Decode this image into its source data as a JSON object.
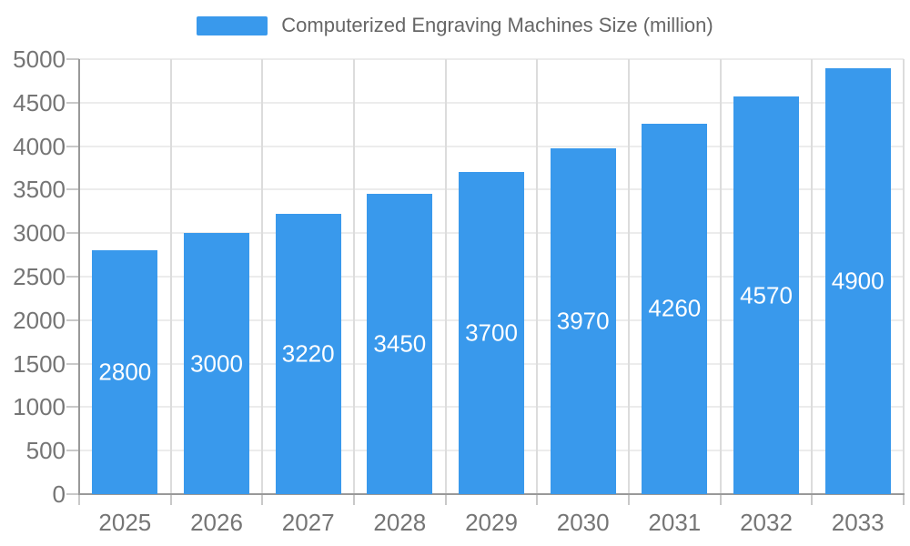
{
  "legend": {
    "label": "Computerized Engraving Machines Size (million)"
  },
  "colors": {
    "bar": "#3999EC",
    "title_text": "#666666",
    "axis_text": "#757575",
    "grid_h": "#ECECEC",
    "grid_v": "#DCDCDC",
    "axis_line": "#999999",
    "tick": "#C9C9C9",
    "value_label": "#FFFFFF",
    "background": "#FFFFFF"
  },
  "chart_data": {
    "type": "bar",
    "title": "Computerized Engraving Machines Size (million)",
    "categories": [
      "2025",
      "2026",
      "2027",
      "2028",
      "2029",
      "2030",
      "2031",
      "2032",
      "2033"
    ],
    "values": [
      2800,
      3000,
      3220,
      3450,
      3700,
      3970,
      4260,
      4570,
      4900
    ],
    "value_labels": [
      "2800",
      "3000",
      "3220",
      "3450",
      "3700",
      "3970",
      "4260",
      "4570",
      "4900"
    ],
    "xlabel": "",
    "ylabel": "",
    "ylim": [
      0,
      5000
    ],
    "ytick_step": 500,
    "yticks": [
      "0",
      "500",
      "1000",
      "1500",
      "2000",
      "2500",
      "3000",
      "3500",
      "4000",
      "4500",
      "5000"
    ],
    "grid": "both",
    "legend_position": "top",
    "value_label_position": "center-of-bar"
  }
}
